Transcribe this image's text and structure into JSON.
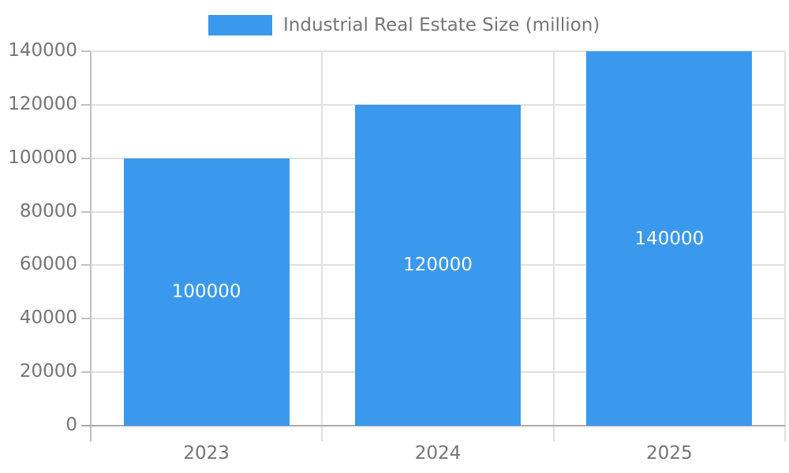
{
  "legend": {
    "label": "Industrial Real Estate Size (million)",
    "swatch_icon": "legend-color-swatch"
  },
  "colors": {
    "bar": "#3A99EC",
    "axis_text": "#757575",
    "grid": "#E0E0E0",
    "axis_line": "#C2C2C2",
    "baseline": "#ACACAC",
    "data_label": "#FFFFFF",
    "background": "#FFFFFF"
  },
  "chart_data": {
    "type": "bar",
    "title": "Industrial Real Estate Size (million)",
    "categories": [
      "2023",
      "2024",
      "2025"
    ],
    "series": [
      {
        "name": "Industrial Real Estate Size (million)",
        "values": [
          100000,
          120000,
          140000
        ],
        "data_labels": [
          "100000",
          "120000",
          "140000"
        ]
      }
    ],
    "xlabel": "",
    "ylabel": "",
    "ylim": [
      0,
      140000
    ],
    "ytick_step": 20000,
    "yticks": [
      0,
      20000,
      40000,
      60000,
      80000,
      100000,
      120000,
      140000
    ],
    "grid": "on",
    "legend_position": "top-center",
    "data_label_position": "inside-center"
  }
}
